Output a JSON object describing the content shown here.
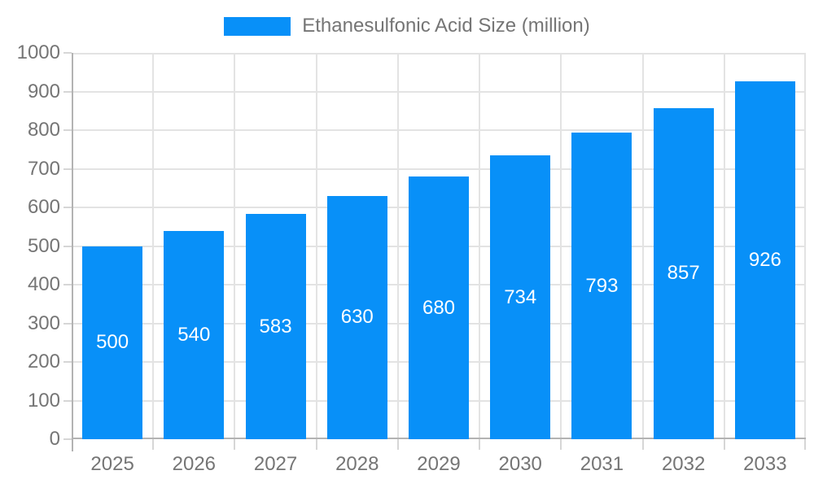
{
  "chart_data": {
    "type": "bar",
    "title": "",
    "legend": "Ethanesulfonic Acid Size (million)",
    "legend_position": "top",
    "categories": [
      "2025",
      "2026",
      "2027",
      "2028",
      "2029",
      "2030",
      "2031",
      "2032",
      "2033"
    ],
    "values": [
      500,
      540,
      583,
      630,
      680,
      734,
      793,
      857,
      926
    ],
    "xlabel": "",
    "ylabel": "",
    "ylim": [
      0,
      1000
    ],
    "yticks": [
      0,
      100,
      200,
      300,
      400,
      500,
      600,
      700,
      800,
      900,
      1000
    ],
    "grid": true,
    "colors": {
      "bar": "#0890F8",
      "bar_label_text": "#ffffff",
      "axis_text": "#757575",
      "grid_line": "#e3e3e3",
      "axis_line": "#b3b3b3",
      "tick_mark": "#d6d6d6",
      "background": "#ffffff"
    }
  }
}
